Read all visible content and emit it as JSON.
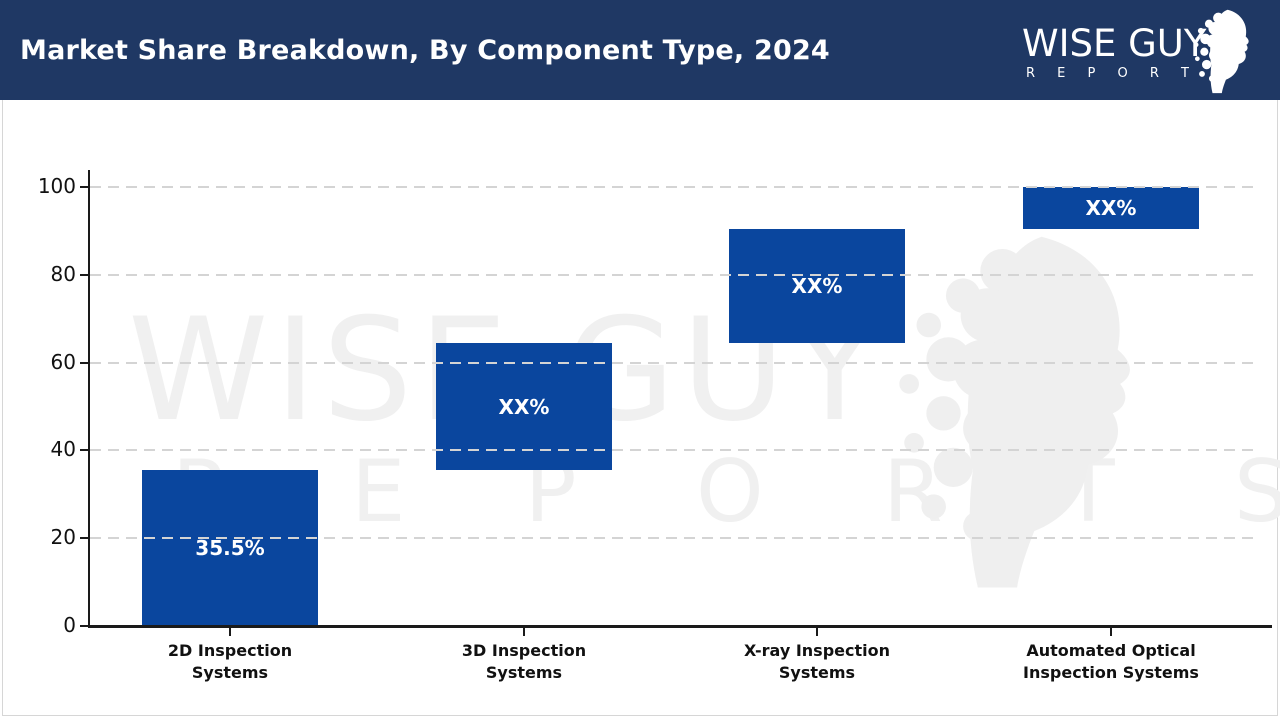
{
  "header": {
    "title": "Market Share Breakdown, By Component Type, 2024",
    "logo": {
      "line1": "WISE GUY",
      "line2": "R E P O R T S"
    }
  },
  "watermark": {
    "line1": "WISE GUY",
    "line2": "R E P O R T S"
  },
  "colors": {
    "header_bg": "#1f3864",
    "bar_fill": "#0a469e",
    "bar_label_text": "#ffffff",
    "grid_line": "#d4d4d4",
    "axis_line": "#1a1a1a",
    "watermark": "#f0f0f0",
    "card_border": "#d6d6d6"
  },
  "chart_data": {
    "type": "bar",
    "subtype": "waterfall (floating stacked segments, one per category)",
    "title": "Market Share Breakdown, By Component Type, 2024",
    "categories": [
      "2D Inspection Systems",
      "3D Inspection Systems",
      "X-ray Inspection Systems",
      "Automated Optical Inspection Systems"
    ],
    "category_lines": [
      [
        "2D Inspection",
        "Systems"
      ],
      [
        "3D Inspection",
        "Systems"
      ],
      [
        "X-ray Inspection",
        "Systems"
      ],
      [
        "Automated Optical",
        "Inspection Systems"
      ]
    ],
    "segments": [
      {
        "category": "2D Inspection Systems",
        "start": 0,
        "end": 35.5,
        "label": "35.5%"
      },
      {
        "category": "3D Inspection Systems",
        "start": 35.5,
        "end": 64.5,
        "label": "XX%"
      },
      {
        "category": "X-ray Inspection Systems",
        "start": 64.5,
        "end": 90.5,
        "label": "XX%"
      },
      {
        "category": "Automated Optical Inspection Systems",
        "start": 90.5,
        "end": 100,
        "label": "XX%"
      }
    ],
    "ylim": [
      0,
      100
    ],
    "yticks": [
      0,
      20,
      40,
      60,
      80,
      100
    ],
    "xlabel": "",
    "ylabel": "",
    "grid": "horizontal dashed, drawn above bars",
    "legend": "none",
    "bar_color": "#0a469e"
  }
}
